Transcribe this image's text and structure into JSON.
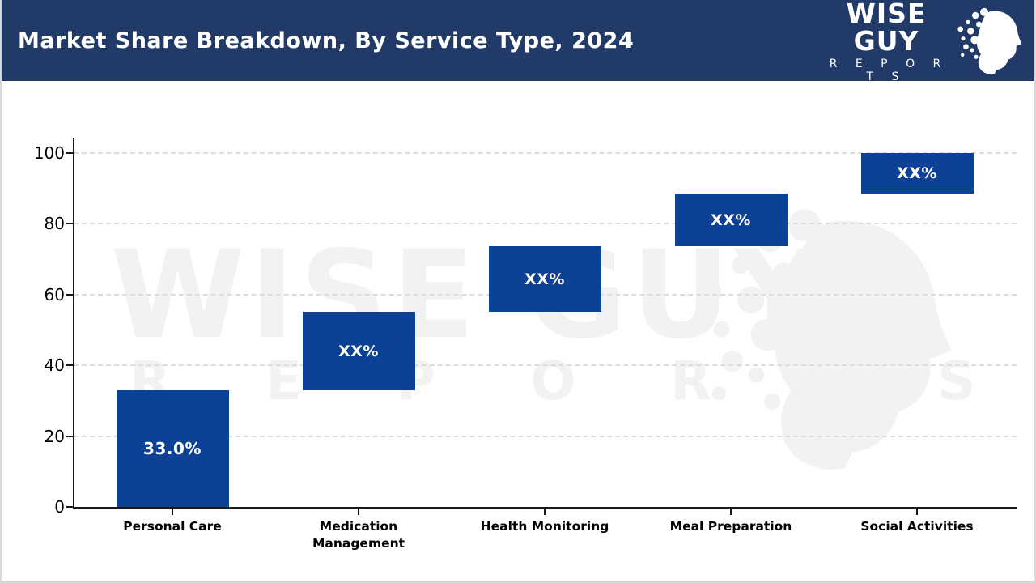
{
  "header": {
    "bg_color": "#223a68",
    "title": "Market Share Breakdown, By Service Type, 2024",
    "logo": {
      "line1": "WISE GUY",
      "line2": "R E P O R T S"
    }
  },
  "watermark": {
    "line1": "WISE GUY",
    "line2": "R E P O R T S"
  },
  "chart_data": {
    "type": "bar",
    "subtype": "waterfall",
    "title": "Market Share Breakdown, By Service Type, 2024",
    "categories": [
      "Personal Care",
      "Medication Management",
      "Health Monitoring",
      "Meal Preparation",
      "Social Activities"
    ],
    "segments": [
      {
        "category": "Personal Care",
        "start": 0,
        "end": 33,
        "value_label": "33.0%"
      },
      {
        "category": "Medication Management",
        "start": 33,
        "end": 55,
        "value_label": "XX%"
      },
      {
        "category": "Health Monitoring",
        "start": 55,
        "end": 73.5,
        "value_label": "XX%"
      },
      {
        "category": "Meal Preparation",
        "start": 73.5,
        "end": 88.5,
        "value_label": "XX%"
      },
      {
        "category": "Social Activities",
        "start": 88.5,
        "end": 100,
        "value_label": "XX%"
      }
    ],
    "yticks": [
      0,
      20,
      40,
      60,
      80,
      100
    ],
    "ylim": [
      0,
      105
    ],
    "xlabel": "",
    "ylabel": "",
    "grid": "dashed-horizontal",
    "legend": "none",
    "bar_color": "#0c4195",
    "value_label_color": "#ffffff"
  }
}
